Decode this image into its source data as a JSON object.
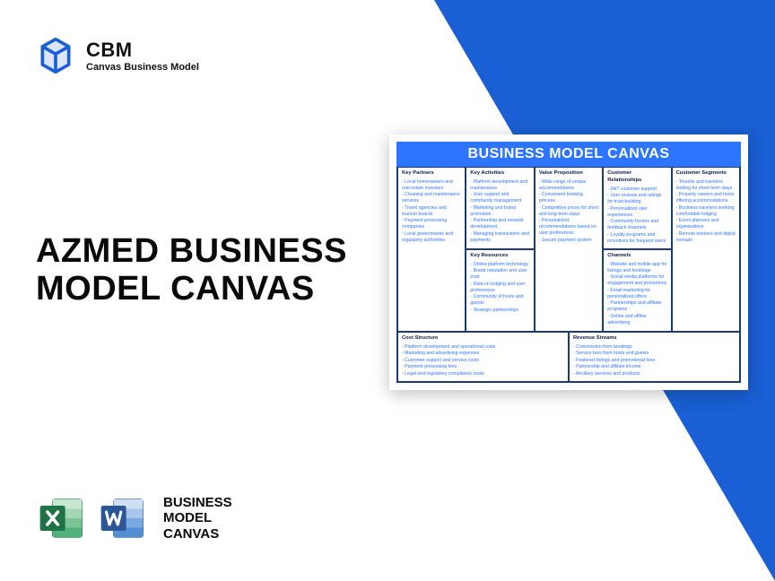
{
  "colors": {
    "brand_blue": "#1a5fd4",
    "canvas_header": "#2d74ff",
    "canvas_border": "#1a3a7a",
    "text_dark": "#0a0a0a",
    "body_text": "#2d74ff",
    "excel_green": "#1e7244",
    "word_blue": "#2b5797"
  },
  "logo": {
    "acronym": "CBM",
    "subtitle": "Canvas Business Model"
  },
  "headline": "AZMED BUSINESS MODEL CANVAS",
  "file_label": "BUSINESS MODEL CANVAS",
  "canvas": {
    "title": "BUSINESS MODEL CANVAS",
    "cells": {
      "key_partners": {
        "header": "Key Partners",
        "items": [
          "- Local homeowners and real estate investors",
          "- Cleaning and maintenance services",
          "- Travel agencies and tourism boards",
          "- Payment processing companies",
          "- Local governments and regulatory authorities"
        ]
      },
      "key_activities": {
        "header": "Key Activities",
        "items": [
          "- Platform development and maintenance",
          "- User support and community management",
          "- Marketing and brand promotion",
          "- Partnership and network development",
          "- Managing transactions and payments"
        ]
      },
      "key_resources": {
        "header": "Key Resources",
        "items": [
          "- Online platform technology",
          "- Brand reputation and user trust",
          "- Data on lodging and user preferences",
          "- Community of hosts and guests",
          "- Strategic partnerships"
        ]
      },
      "value_proposition": {
        "header": "Value Proposition",
        "items": [
          "- Wide range of unique accommodations",
          "- Convenient booking process",
          "- Competitive prices for short and long-term stays",
          "- Personalized recommendations based on user preferences",
          "- Secure payment system"
        ]
      },
      "customer_relationships": {
        "header": "Customer Relationships",
        "items": [
          "- 24/7 customer support",
          "- User reviews and ratings for trust-building",
          "- Personalized user experiences",
          "- Community forums and feedback channels",
          "- Loyalty programs and incentives for frequent users"
        ]
      },
      "channels": {
        "header": "Channels",
        "items": [
          "- Website and mobile app for listings and bookings",
          "- Social media platforms for engagement and promotions",
          "- Email marketing for personalized offers",
          "- Partnerships and affiliate programs",
          "- Online and offline advertising"
        ]
      },
      "customer_segments": {
        "header": "Customer Segments",
        "items": [
          "- Tourists and travelers looking for short-term stays",
          "- Property owners and hosts offering accommodations",
          "- Business travelers seeking comfortable lodging",
          "- Event planners and organizations",
          "- Remote workers and digital nomads"
        ]
      },
      "cost_structure": {
        "header": "Cost Structure",
        "items": [
          "- Platform development and operational costs",
          "- Marketing and advertising expenses",
          "- Customer support and service costs",
          "- Payment processing fees",
          "- Legal and regulatory compliance costs"
        ]
      },
      "revenue_streams": {
        "header": "Revenue Streams",
        "items": [
          "- Commission from bookings",
          "- Service fees from hosts and guests",
          "- Featured listings and promotional fees",
          "- Partnership and affiliate income",
          "- Ancillary services and products"
        ]
      }
    }
  }
}
